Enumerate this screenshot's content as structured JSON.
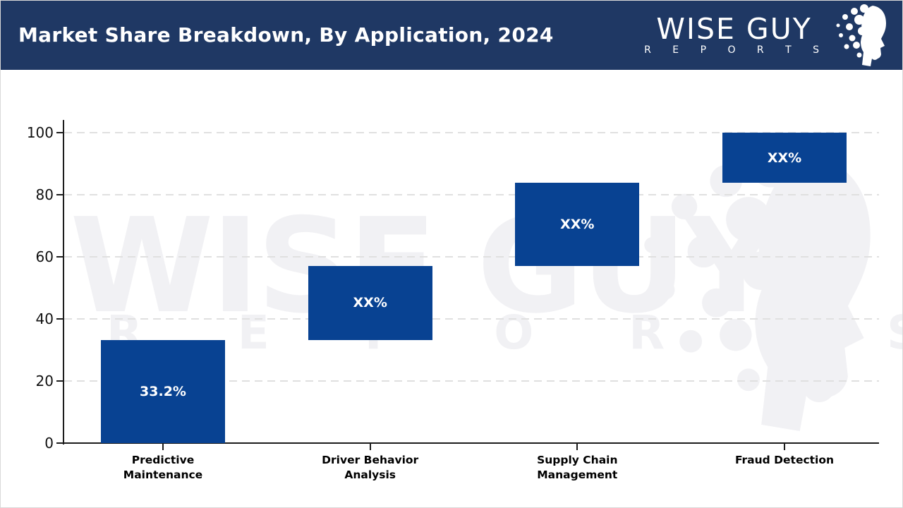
{
  "header": {
    "title": "Market Share Breakdown, By Application, 2024",
    "bg_color": "#1f3864",
    "logo": {
      "line1": "WISE GUY",
      "line2": "R E P O R T S"
    }
  },
  "watermark": {
    "line1": "WISE GUY",
    "line2": "R E P O R T S"
  },
  "chart_data": {
    "type": "bar",
    "subtype": "waterfall",
    "title": "Market Share Breakdown, By Application, 2024",
    "xlabel": "",
    "ylabel": "",
    "ylim": [
      0,
      100
    ],
    "y_ticks": [
      0,
      20,
      40,
      60,
      80,
      100
    ],
    "grid": "horizontal-dashed",
    "bar_color": "#084292",
    "label_color": "#ffffff",
    "categories": [
      "Predictive\nMaintenance",
      "Driver Behavior\nAnalysis",
      "Supply Chain\nManagement",
      "Fraud Detection"
    ],
    "segments": [
      {
        "category": "Predictive Maintenance",
        "start": 0,
        "end": 33.2,
        "label": "33.2%"
      },
      {
        "category": "Driver Behavior Analysis",
        "start": 33.2,
        "end": 57.1,
        "label": "XX%"
      },
      {
        "category": "Supply Chain Management",
        "start": 57.1,
        "end": 83.8,
        "label": "XX%"
      },
      {
        "category": "Fraud Detection",
        "start": 83.8,
        "end": 100,
        "label": "XX%"
      }
    ]
  }
}
